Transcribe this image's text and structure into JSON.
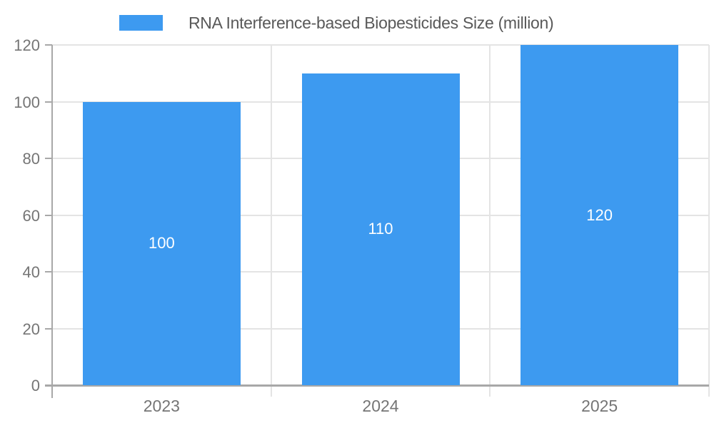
{
  "chart_data": {
    "type": "bar",
    "title": "RNA Interference-based Biopesticides Size (million)",
    "categories": [
      "2023",
      "2024",
      "2025"
    ],
    "series": [
      {
        "name": "RNA Interference-based Biopesticides Size (million)",
        "values": [
          100,
          110,
          120
        ]
      }
    ],
    "data_labels": [
      "100",
      "110",
      "120"
    ],
    "xlabel": "",
    "ylabel": "",
    "ylim": [
      0,
      120
    ],
    "yticks": [
      0,
      20,
      40,
      60,
      80,
      100,
      120
    ],
    "grid": true,
    "legend_position": "top"
  },
  "legend": {
    "label": "RNA Interference-based Biopesticides Size (million)"
  },
  "colors": {
    "bar": "#3D9AF0",
    "gridline": "#e4e4e4",
    "axis": "#a8a8a8",
    "tick_text": "#757575",
    "legend_text": "#595959",
    "data_label_text": "#ffffff",
    "background": "#ffffff"
  }
}
